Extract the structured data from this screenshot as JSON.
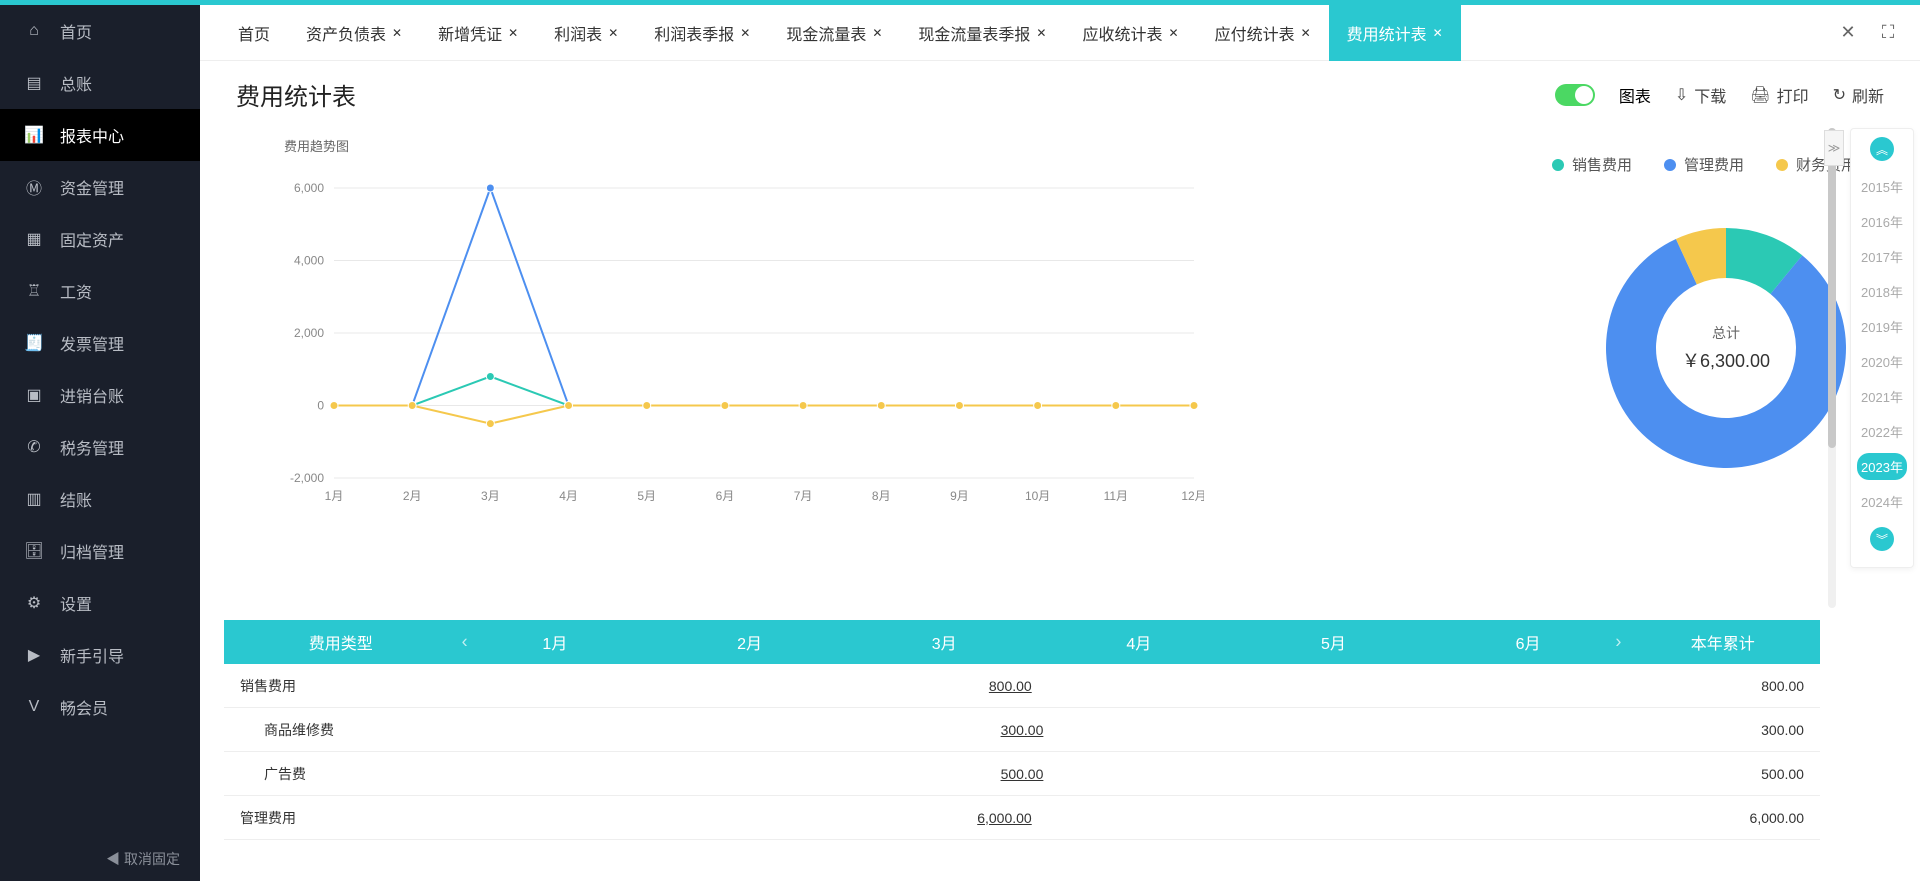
{
  "sidebar": {
    "items": [
      {
        "label": "首页",
        "icon": "home"
      },
      {
        "label": "总账",
        "icon": "ledger"
      },
      {
        "label": "报表中心",
        "icon": "chart",
        "active": true
      },
      {
        "label": "资金管理",
        "icon": "money"
      },
      {
        "label": "固定资产",
        "icon": "asset"
      },
      {
        "label": "工资",
        "icon": "salary"
      },
      {
        "label": "发票管理",
        "icon": "invoice"
      },
      {
        "label": "进销台账",
        "icon": "inventory"
      },
      {
        "label": "税务管理",
        "icon": "tax"
      },
      {
        "label": "结账",
        "icon": "close"
      },
      {
        "label": "归档管理",
        "icon": "archive"
      },
      {
        "label": "设置",
        "icon": "gear"
      },
      {
        "label": "新手引导",
        "icon": "guide"
      },
      {
        "label": "畅会员",
        "icon": "vip"
      }
    ],
    "footer": "取消固定"
  },
  "tabs": [
    {
      "label": "首页",
      "closable": false
    },
    {
      "label": "资产负债表",
      "closable": true
    },
    {
      "label": "新增凭证",
      "closable": true
    },
    {
      "label": "利润表",
      "closable": true
    },
    {
      "label": "利润表季报",
      "closable": true
    },
    {
      "label": "现金流量表",
      "closable": true
    },
    {
      "label": "现金流量表季报",
      "closable": true
    },
    {
      "label": "应收统计表",
      "closable": true
    },
    {
      "label": "应付统计表",
      "closable": true
    },
    {
      "label": "费用统计表",
      "closable": true,
      "active": true
    }
  ],
  "page": {
    "title": "费用统计表",
    "toggle_label": "图表",
    "download": "下载",
    "print": "打印",
    "refresh": "刷新"
  },
  "line_chart": {
    "title": "费用趋势图",
    "type": "line",
    "x_labels": [
      "1月",
      "2月",
      "3月",
      "4月",
      "5月",
      "6月",
      "7月",
      "8月",
      "9月",
      "10月",
      "11月",
      "12月"
    ],
    "y_ticks": [
      -2000,
      0,
      2000,
      4000,
      6000
    ],
    "ylim": [
      -2000,
      6000
    ],
    "series": [
      {
        "name": "销售费用",
        "color": "#2bc9b4",
        "values": [
          0,
          0,
          800,
          0,
          0,
          0,
          0,
          0,
          0,
          0,
          0,
          0
        ]
      },
      {
        "name": "管理费用",
        "color": "#4d8ff0",
        "values": [
          0,
          0,
          6000,
          0,
          0,
          0,
          0,
          0,
          0,
          0,
          0,
          0
        ]
      },
      {
        "name": "财务费用",
        "color": "#f5c84c",
        "values": [
          0,
          0,
          -500,
          0,
          0,
          0,
          0,
          0,
          0,
          0,
          0,
          0
        ]
      }
    ],
    "grid_color": "#e8e8e8",
    "axis_color": "#cccccc",
    "text_color": "#888888",
    "marker_radius": 4,
    "line_width": 2
  },
  "donut": {
    "type": "donut",
    "center_label": "总计",
    "center_value": "￥6,300.00",
    "slices": [
      {
        "name": "销售费用",
        "value": 800,
        "color": "#2bc9b4"
      },
      {
        "name": "管理费用",
        "value": 6000,
        "color": "#4d8ff0"
      },
      {
        "name": "财务费用",
        "value": -500,
        "color": "#f5c84c"
      }
    ],
    "inner_radius": 70,
    "outer_radius": 120
  },
  "legend": [
    {
      "label": "销售费用",
      "color": "#2bc9b4"
    },
    {
      "label": "管理费用",
      "color": "#4d8ff0"
    },
    {
      "label": "财务费用",
      "color": "#f5c84c"
    }
  ],
  "years": {
    "list": [
      "2015年",
      "2016年",
      "2017年",
      "2018年",
      "2019年",
      "2020年",
      "2021年",
      "2022年",
      "2023年",
      "2024年"
    ],
    "active": "2023年"
  },
  "table": {
    "header_first": "费用类型",
    "header_last": "本年累计",
    "months": [
      "1月",
      "2月",
      "3月",
      "4月",
      "5月",
      "6月"
    ],
    "rows": [
      {
        "label": "销售费用",
        "indent": 0,
        "cells": [
          "",
          "",
          "800.00",
          "",
          "",
          ""
        ],
        "total": "800.00"
      },
      {
        "label": "商品维修费",
        "indent": 1,
        "cells": [
          "",
          "",
          "300.00",
          "",
          "",
          ""
        ],
        "total": "300.00"
      },
      {
        "label": "广告费",
        "indent": 1,
        "cells": [
          "",
          "",
          "500.00",
          "",
          "",
          ""
        ],
        "total": "500.00"
      },
      {
        "label": "管理费用",
        "indent": 0,
        "cells": [
          "",
          "",
          "6,000.00",
          "",
          "",
          ""
        ],
        "total": "6,000.00"
      }
    ]
  }
}
